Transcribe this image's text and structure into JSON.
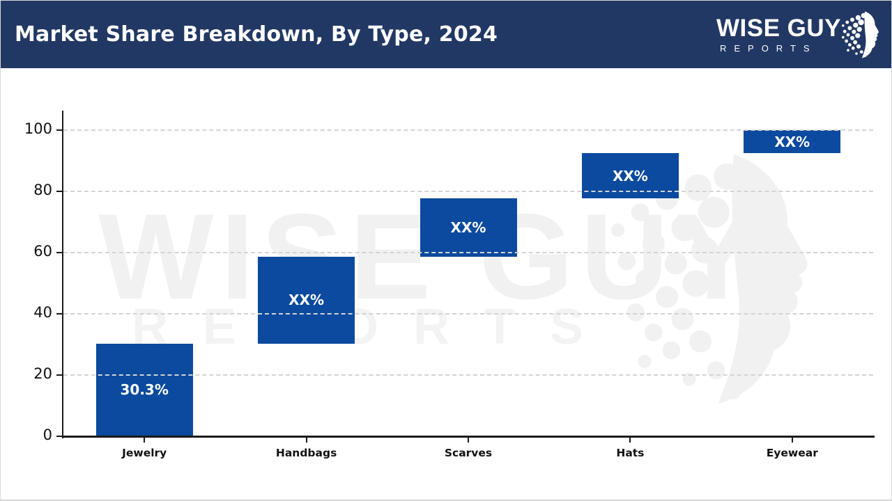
{
  "header": {
    "title": "Market Share Breakdown, By Type, 2024",
    "logo": {
      "primary": "WISE GUY",
      "secondary": "REPORTS"
    }
  },
  "watermark": {
    "primary": "WISE GUY",
    "secondary": "REPORTS"
  },
  "chart_data": {
    "type": "bar",
    "subtype": "waterfall-floating-bars",
    "title": "Market Share Breakdown, By Type, 2024",
    "categories": [
      "Jewelry",
      "Handbags",
      "Scarves",
      "Hats",
      "Eyewear"
    ],
    "segments": [
      {
        "category": "Jewelry",
        "start": 0,
        "end": 30.3,
        "label": "30.3%"
      },
      {
        "category": "Handbags",
        "start": 30.3,
        "end": 58.6,
        "label": "XX%"
      },
      {
        "category": "Scarves",
        "start": 58.6,
        "end": 77.7,
        "label": "XX%"
      },
      {
        "category": "Hats",
        "start": 77.7,
        "end": 92.5,
        "label": "XX%"
      },
      {
        "category": "Eyewear",
        "start": 92.5,
        "end": 100,
        "label": "XX%"
      }
    ],
    "xlabel": "",
    "ylabel": "",
    "ylim": [
      0,
      100
    ],
    "yticks": [
      0,
      20,
      40,
      60,
      80,
      100
    ],
    "grid": "horizontal-dashed",
    "legend_position": "none",
    "bar_color": "#0b4a9e",
    "bar_label_color": "#ffffff",
    "axis_color": "#1a1a1a",
    "gridline_color": "#d4d4d4",
    "header_bg_color": "#223864"
  }
}
